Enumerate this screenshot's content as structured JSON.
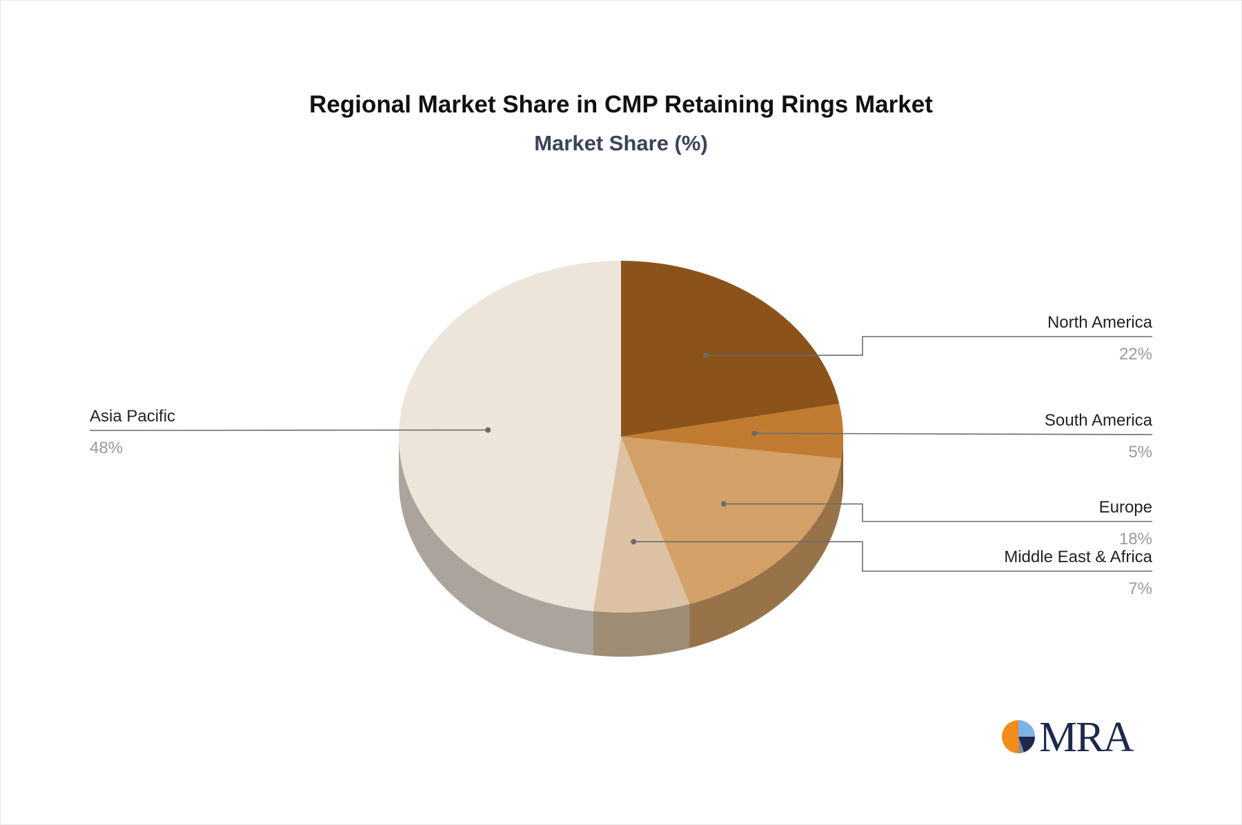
{
  "header": {
    "title": "Regional Market Share in CMP Retaining Rings Market",
    "subtitle": "Market Share (%)"
  },
  "logo": {
    "text": "MRA",
    "icon": "pie-logo-icon",
    "colors": [
      "#f28c1a",
      "#1d2a4d",
      "#7fb2e5"
    ]
  },
  "chart_data": {
    "type": "pie",
    "title": "Regional Market Share in CMP Retaining Rings Market",
    "subtitle": "Market Share (%)",
    "unit": "%",
    "slices": [
      {
        "name": "North America",
        "value": 22,
        "label": "22%",
        "color": "#8b5319"
      },
      {
        "name": "South America",
        "value": 5,
        "label": "5%",
        "color": "#c17b31"
      },
      {
        "name": "Europe",
        "value": 18,
        "label": "18%",
        "color": "#d3a067"
      },
      {
        "name": "Middle East & Africa",
        "value": 7,
        "label": "7%",
        "color": "#dcc2a3"
      },
      {
        "name": "Asia Pacific",
        "value": 48,
        "label": "48%",
        "color": "#ede4da"
      }
    ],
    "legend": "none",
    "labels_position": "outside-with-leader-lines"
  }
}
